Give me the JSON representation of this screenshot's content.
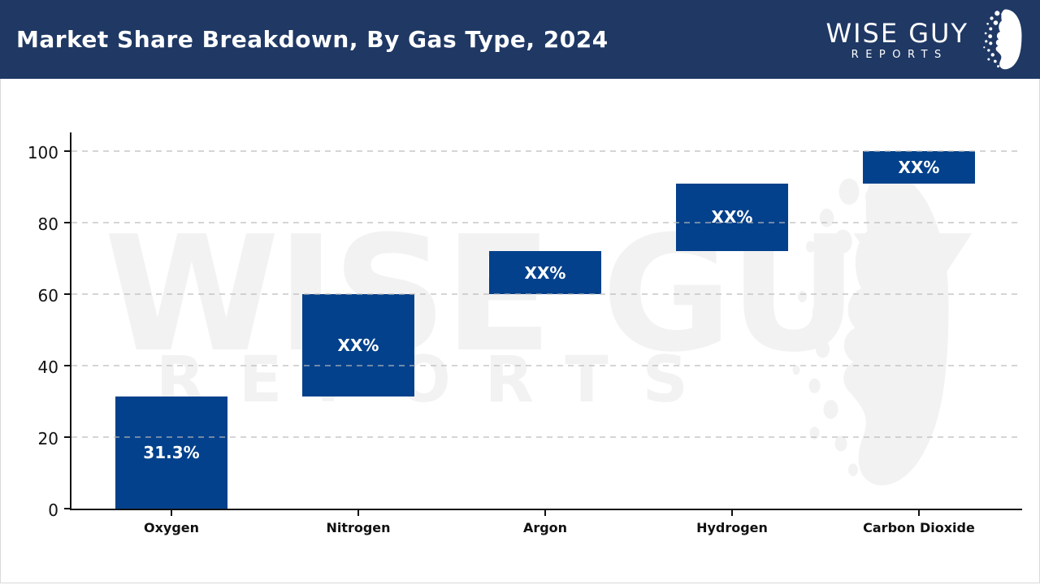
{
  "header": {
    "title": "Market Share Breakdown, By Gas Type, 2024",
    "background_color": "#1f3864",
    "logo": {
      "line1": "WISE GUY",
      "line2": "REPORTS"
    }
  },
  "watermark": {
    "line1": "WISE GUY",
    "line2": "REPORTS"
  },
  "chart_data": {
    "type": "bar",
    "subtype": "waterfall",
    "title": "Market Share Breakdown, By Gas Type, 2024",
    "categories": [
      "Oxygen",
      "Nitrogen",
      "Argon",
      "Hydrogen",
      "Carbon Dioxide"
    ],
    "segments": [
      {
        "category": "Oxygen",
        "start": 0,
        "end": 31.3,
        "label": "31.3%"
      },
      {
        "category": "Nitrogen",
        "start": 31.3,
        "end": 60,
        "label": "XX%"
      },
      {
        "category": "Argon",
        "start": 60,
        "end": 72,
        "label": "XX%"
      },
      {
        "category": "Hydrogen",
        "start": 72,
        "end": 91,
        "label": "XX%"
      },
      {
        "category": "Carbon Dioxide",
        "start": 91,
        "end": 100,
        "label": "XX%"
      }
    ],
    "ylim": [
      0,
      105
    ],
    "yticks": [
      0,
      20,
      40,
      60,
      80,
      100
    ],
    "grid": {
      "axis": "y",
      "style": "dashed",
      "color": "#d9d9d9",
      "drawn_over_bars": true
    },
    "bar_color": "#04418c",
    "bar_label_color": "#ffffff",
    "axis_color": "#111111",
    "legend_position": "none"
  }
}
